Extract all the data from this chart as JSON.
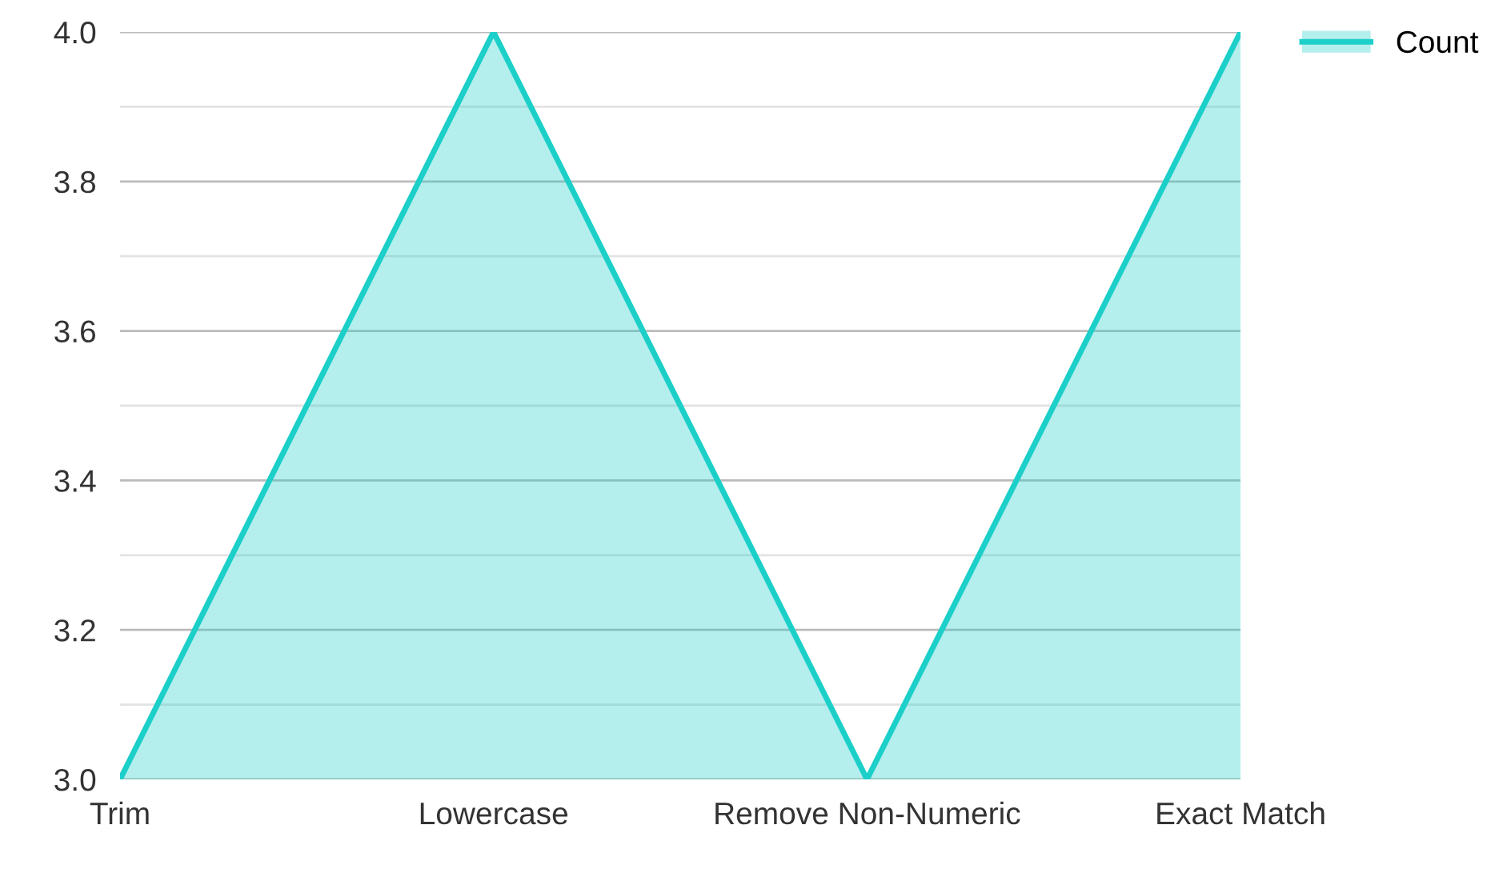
{
  "chart_data": {
    "type": "area",
    "categories": [
      "Trim",
      "Lowercase",
      "Remove Non-Numeric",
      "Exact Match"
    ],
    "series": [
      {
        "name": "Count",
        "color": "#1ccfc9",
        "values": [
          3,
          4,
          3,
          4
        ]
      }
    ],
    "ylim": [
      3,
      4
    ],
    "yticks": [
      {
        "value": 3.0,
        "label": "3.0"
      },
      {
        "value": 3.1,
        "label": null
      },
      {
        "value": 3.2,
        "label": "3.2"
      },
      {
        "value": 3.3,
        "label": null
      },
      {
        "value": 3.4,
        "label": "3.4"
      },
      {
        "value": 3.5,
        "label": null
      },
      {
        "value": 3.6,
        "label": "3.6"
      },
      {
        "value": 3.7,
        "label": null
      },
      {
        "value": 3.8,
        "label": "3.8"
      },
      {
        "value": 3.9,
        "label": null
      },
      {
        "value": 4.0,
        "label": "4.0"
      }
    ],
    "grid": "y",
    "legend": "top right"
  }
}
